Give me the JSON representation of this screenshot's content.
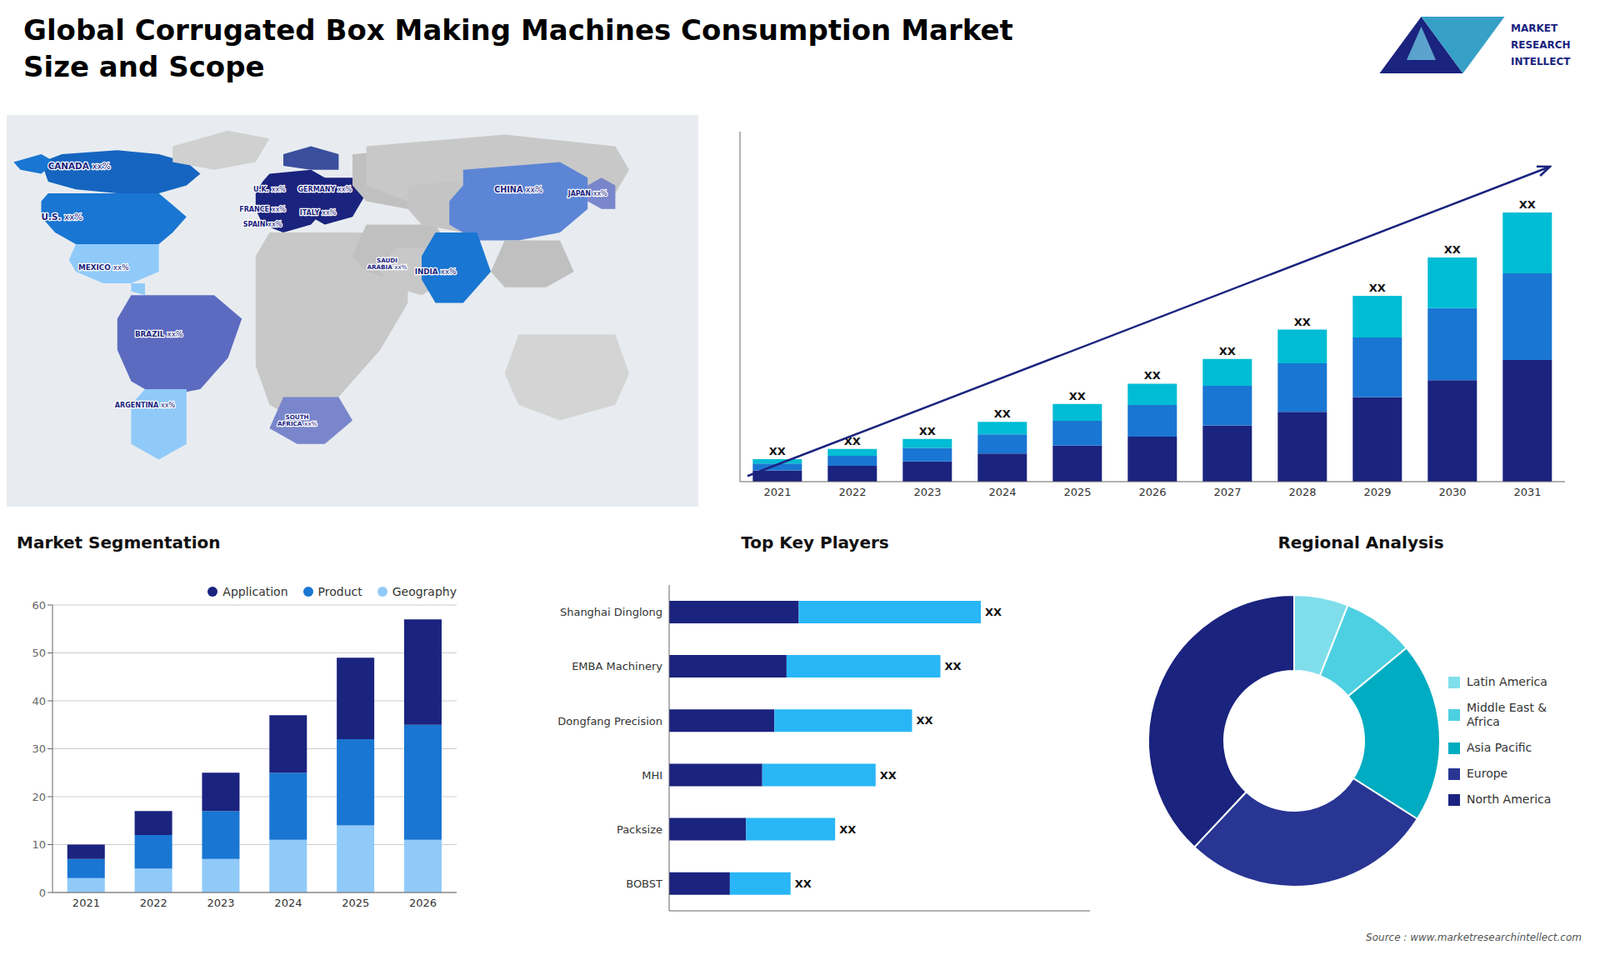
{
  "title": "Global Corrugated Box Making Machines Consumption Market\nSize and Scope",
  "annotations": [
    "Source : www.marketresearchintellect.com",
    "MARKET",
    "RESEARCH",
    "INTELLECT"
  ],
  "chart_data": [
    {
      "type": "map",
      "categories": [
        "CANADA",
        "U.S.",
        "MEXICO",
        "BRAZIL",
        "ARGENTINA",
        "U.K.",
        "FRANCE",
        "SPAIN",
        "GERMANY",
        "ITALY",
        "SOUTH\nAFRICA",
        "SAUDI\nARABIA",
        "CHINA",
        "INDIA",
        "JAPAN"
      ],
      "annotations": [
        "xx%",
        "xx%",
        "xx%",
        "xx%",
        "xx%",
        "xx%",
        "xx%",
        "xx%",
        "xx%",
        "xx%",
        "xx%",
        "xx%",
        "xx%",
        "xx%",
        "xx%"
      ]
    },
    {
      "type": "bar",
      "stacked": true,
      "categories": [
        "2021",
        "2022",
        "2023",
        "2024",
        "2025",
        "2026",
        "2027",
        "2028",
        "2029",
        "2030",
        "2031"
      ],
      "series": [
        {
          "color": "#1a237e",
          "values": [
            1.0,
            1.4,
            1.8,
            2.5,
            3.2,
            4.0,
            5.0,
            6.2,
            7.5,
            9.0,
            10.8
          ]
        },
        {
          "color": "#1976d2",
          "values": [
            0.6,
            0.9,
            1.2,
            1.7,
            2.2,
            2.8,
            3.5,
            4.3,
            5.3,
            6.4,
            7.7
          ]
        },
        {
          "color": "#00bcd4",
          "values": [
            0.4,
            0.6,
            0.8,
            1.1,
            1.5,
            1.9,
            2.4,
            3.0,
            3.7,
            4.5,
            5.4
          ]
        }
      ],
      "ylim": [
        0,
        31.07
      ],
      "yticks": [],
      "tick_labels": "x",
      "grid": false,
      "annotations": [
        "XX",
        "XX",
        "XX",
        "XX",
        "XX",
        "XX",
        "XX",
        "XX",
        "XX",
        "XX",
        "XX"
      ]
    },
    {
      "type": "bar",
      "title": "Market Segmentation",
      "stacked": true,
      "categories": [
        "2021",
        "2022",
        "2023",
        "2024",
        "2025",
        "2026"
      ],
      "series": [
        {
          "name": "Geography",
          "color": "#90caf9",
          "values": [
            3,
            5,
            7,
            11,
            14,
            11
          ]
        },
        {
          "name": "Product",
          "color": "#1976d2",
          "values": [
            4,
            7,
            10,
            14,
            18,
            24
          ]
        },
        {
          "name": "Application",
          "color": "#1a237e",
          "values": [
            3,
            5,
            8,
            12,
            17,
            22
          ]
        }
      ],
      "ylim": [
        0,
        60
      ],
      "yticks": [
        0,
        10,
        20,
        30,
        40,
        50,
        60
      ],
      "grid": true,
      "legend": "upper right"
    },
    {
      "type": "bar",
      "title": "Top Key Players",
      "orientation": "horizontal",
      "stacked": true,
      "categories": [
        "Shanghai Dinglong",
        "EMBA Machinery",
        "Dongfang Precision",
        "MHI",
        "Packsize",
        "BOBST"
      ],
      "series": [
        {
          "color": "#1a237e",
          "values": [
            3.2,
            2.9,
            2.6,
            2.3,
            1.9,
            1.5
          ]
        },
        {
          "color": "#29b6f6",
          "values": [
            4.5,
            3.8,
            3.4,
            2.8,
            2.2,
            1.5
          ]
        }
      ],
      "xlim": [
        0,
        10.395
      ],
      "xticks": [],
      "tick_labels": "y",
      "grid": false,
      "annotations": [
        "XX",
        "XX",
        "XX",
        "XX",
        "XX",
        "XX"
      ]
    },
    {
      "type": "donut",
      "title": "Regional Analysis",
      "categories": [
        "Latin America",
        "Middle East &\nAfrica",
        "Asia Pacific",
        "Europe",
        "North America"
      ],
      "values": [
        6,
        8,
        20,
        28,
        38
      ],
      "colors": [
        "#80deea",
        "#4dd0e1",
        "#00acc1",
        "#283593",
        "#1a237e"
      ],
      "legend": "right"
    }
  ]
}
